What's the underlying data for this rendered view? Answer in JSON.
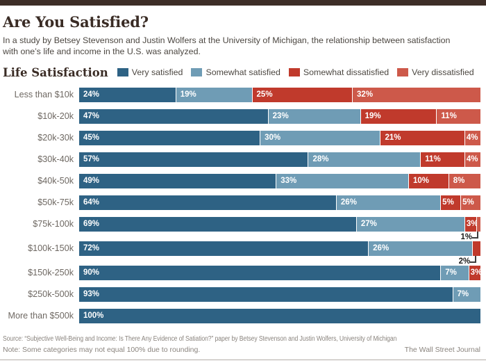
{
  "header": {
    "title": "Are You Satisfied?",
    "subtitle": "In a study by Betsey Stevenson and Justin Wolfers at the University of Michigan, the relationship between satisfaction with one’s life and income in the U.S. was analyzed."
  },
  "legend": {
    "title": "Life Satisfaction"
  },
  "chart_data": {
    "type": "bar",
    "orientation": "horizontal-stacked",
    "unit": "%",
    "xlim": [
      0,
      100
    ],
    "value_labels": "inside-left white bold; segments under 3% use external callouts",
    "categories": [
      "Less than $10k",
      "$10k-20k",
      "$20k-30k",
      "$30k-40k",
      "$40k-50k",
      "$50k-75k",
      "$75k-100k",
      "$100k-150k",
      "$150k-250k",
      "$250k-500k",
      "More than $500k"
    ],
    "series": [
      {
        "name": "Very satisfied",
        "color": "#2e6284",
        "values": [
          24,
          47,
          45,
          57,
          49,
          64,
          69,
          72,
          90,
          93,
          100
        ]
      },
      {
        "name": "Somewhat satisfied",
        "color": "#6f9cb5",
        "values": [
          19,
          23,
          30,
          28,
          33,
          26,
          27,
          26,
          7,
          7,
          0
        ]
      },
      {
        "name": "Somewhat dissatisfied",
        "color": "#c03a2c",
        "values": [
          25,
          19,
          21,
          11,
          10,
          5,
          3,
          2,
          3,
          0,
          0
        ]
      },
      {
        "name": "Very dissatisfied",
        "color": "#cd594a",
        "values": [
          32,
          11,
          4,
          4,
          8,
          5,
          1,
          0,
          0,
          0,
          0
        ]
      }
    ],
    "callouts": [
      {
        "category": "$75k-100k",
        "series": "Very dissatisfied",
        "label": "1%"
      },
      {
        "category": "$100k-150k",
        "series": "Somewhat dissatisfied",
        "label": "2%"
      }
    ]
  },
  "footer": {
    "source": "Source: “Subjective Well-Being and Income: Is There Any Evidence of Satiation?” paper by Betsey Stevenson and Justin Wolfers, University of Michigan",
    "note": "Note: Some categories may not equal 100% due to rounding.",
    "credit": "The Wall Street Journal"
  }
}
